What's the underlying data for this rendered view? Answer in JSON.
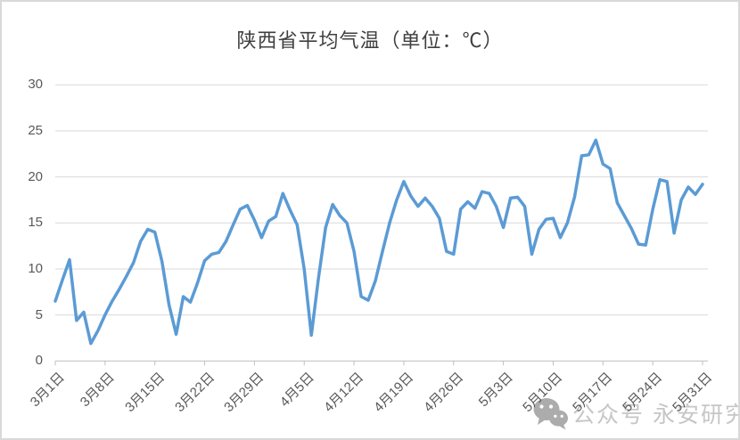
{
  "chart": {
    "title": "陕西省平均气温（单位：℃）",
    "watermark_text": "公众号 永安研究"
  },
  "chart_data": {
    "type": "line",
    "title": "陕西省平均气温（单位：℃）",
    "unit": "℃",
    "x_start_date": "3月1日",
    "x_end_date": "5月31日",
    "x_tick_labels": [
      "3月1日",
      "3月8日",
      "3月15日",
      "3月22日",
      "3月29日",
      "4月5日",
      "4月12日",
      "4月19日",
      "4月26日",
      "5月3日",
      "5月10日",
      "5月17日",
      "5月24日",
      "5月31日"
    ],
    "x_tick_every_days": 7,
    "ylim": [
      0,
      30
    ],
    "y_ticks": [
      0,
      5,
      10,
      15,
      20,
      25,
      30
    ],
    "grid": true,
    "legend_position": "none",
    "series": [
      {
        "name": "陕西省平均气温",
        "color": "#5B9BD5",
        "daily_values_mar1_to_may31": [
          6.5,
          8.8,
          11.0,
          4.4,
          5.3,
          1.9,
          3.3,
          5.0,
          6.5,
          7.8,
          9.2,
          10.7,
          13.0,
          14.3,
          14.0,
          10.8,
          6.1,
          2.9,
          7.0,
          6.4,
          8.5,
          10.9,
          11.6,
          11.8,
          13.0,
          14.8,
          16.5,
          16.9,
          15.3,
          13.4,
          15.2,
          15.7,
          18.2,
          16.4,
          14.8,
          10.0,
          2.8,
          9.0,
          14.5,
          17.0,
          15.8,
          15.0,
          11.9,
          7.0,
          6.6,
          8.7,
          11.9,
          15.0,
          17.5,
          19.5,
          17.9,
          16.8,
          17.7,
          16.8,
          15.5,
          11.9,
          11.6,
          16.5,
          17.3,
          16.6,
          18.4,
          18.2,
          16.8,
          14.5,
          17.7,
          17.8,
          16.8,
          11.6,
          14.3,
          15.4,
          15.5,
          13.4,
          15.0,
          17.8,
          22.3,
          22.4,
          24.0,
          21.4,
          20.9,
          17.2,
          15.8,
          14.4,
          12.7,
          12.6,
          16.5,
          19.7,
          19.5,
          13.9,
          17.5,
          18.9,
          18.1,
          19.2
        ]
      }
    ]
  },
  "colors": {
    "line": "#5B9BD5",
    "gridline": "#D9D9D9",
    "axis": "#BFBFBF",
    "tick_label": "#595959",
    "title_text": "#3F3F3F",
    "watermark_icon": "#ACACAC",
    "watermark_text": "#C6C6C6",
    "background": "#FFFFFF",
    "border": "#D9D9D9"
  }
}
